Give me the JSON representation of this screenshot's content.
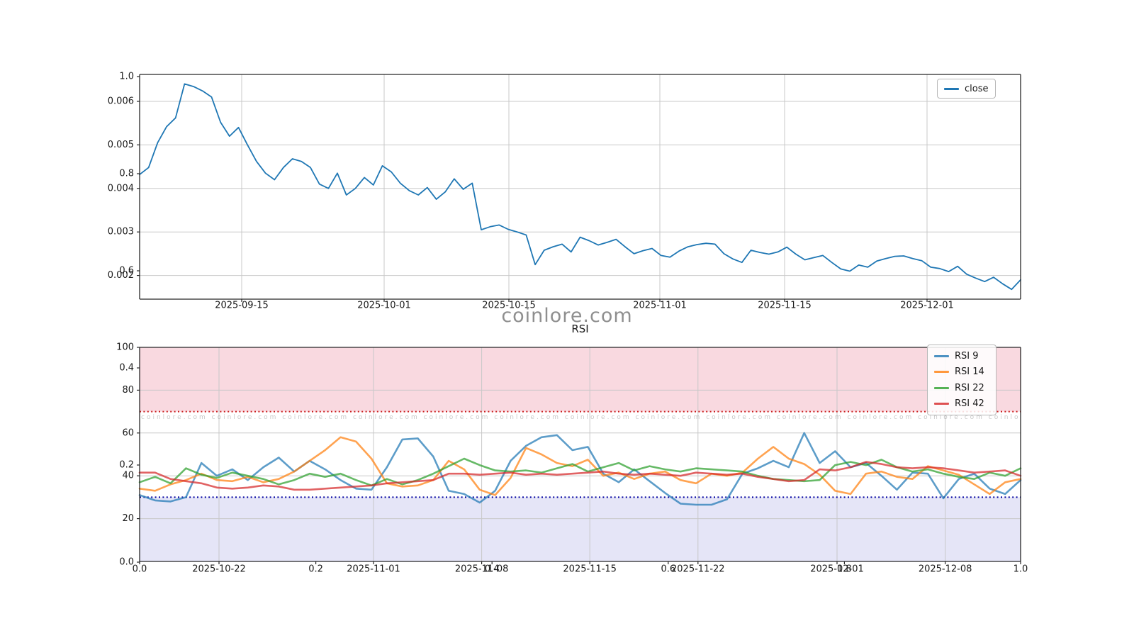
{
  "watermark": {
    "text": "coinlore.com",
    "tiled_text": "coinlore.com coinlore.com coinlore.com coinlore.com coinlore.com coinlore.com coinlore.com coinlore.com coinlore.com coinlore.com coinlore.com coinlore.com coinlore.com coinlore.com"
  },
  "figure_axis": {
    "x_tick_labels": [
      "0.0",
      "0.2",
      "0.4",
      "0.6",
      "0.8",
      "1.0"
    ],
    "y_tick_labels": [
      "1.0",
      "0.8",
      "0.6",
      "0.4",
      "0.2",
      "0.0"
    ]
  },
  "chart_data": [
    {
      "type": "line",
      "title": "",
      "legend_position": "upper right",
      "grid": true,
      "x_start": "2025-09-04",
      "x_end": "2025-12-11",
      "x_tick_labels": [
        "2025-09-15",
        "2025-10-01",
        "2025-10-15",
        "2025-11-01",
        "2025-11-15",
        "2025-12-01"
      ],
      "y_tick_labels": [
        "0.006",
        "0.005",
        "0.004",
        "0.003",
        "0.002"
      ],
      "y_tick_values": [
        0.006,
        0.005,
        0.004,
        0.003,
        0.002
      ],
      "ylim": [
        0.00143,
        0.00662
      ],
      "series": [
        {
          "name": "close",
          "color": "#1f77b4",
          "values": [
            0.00432,
            0.00448,
            0.00505,
            0.00542,
            0.00562,
            0.0064,
            0.00634,
            0.00624,
            0.0061,
            0.00552,
            0.0052,
            0.0054,
            0.005,
            0.00462,
            0.00435,
            0.0042,
            0.00448,
            0.00468,
            0.00462,
            0.00448,
            0.0041,
            0.004,
            0.00435,
            0.00385,
            0.004,
            0.00425,
            0.00408,
            0.00452,
            0.00438,
            0.00412,
            0.00395,
            0.00385,
            0.00402,
            0.00375,
            0.00392,
            0.00422,
            0.00398,
            0.00412,
            0.00305,
            0.00312,
            0.00316,
            0.00306,
            0.003,
            0.00293,
            0.00225,
            0.00258,
            0.00266,
            0.00272,
            0.00254,
            0.00288,
            0.0028,
            0.0027,
            0.00276,
            0.00283,
            0.00266,
            0.0025,
            0.00257,
            0.00262,
            0.00246,
            0.00242,
            0.00256,
            0.00266,
            0.00271,
            0.00274,
            0.00272,
            0.0025,
            0.00238,
            0.0023,
            0.00258,
            0.00253,
            0.00249,
            0.00254,
            0.00265,
            0.00249,
            0.00236,
            0.00241,
            0.00246,
            0.0023,
            0.00215,
            0.0021,
            0.00224,
            0.00219,
            0.00233,
            0.00239,
            0.00244,
            0.00245,
            0.00239,
            0.00234,
            0.00219,
            0.00216,
            0.00209,
            0.00221,
            0.00203,
            0.00194,
            0.00186,
            0.00196,
            0.00181,
            0.00168,
            0.0019
          ]
        }
      ]
    },
    {
      "type": "line",
      "title": "RSI",
      "legend_position": "upper right",
      "grid": true,
      "x_start": "2025-10-17",
      "x_end": "2025-12-13",
      "x_tick_labels": [
        "2025-10-22",
        "2025-11-01",
        "2025-11-08",
        "2025-11-15",
        "2025-11-22",
        "2025-12-01",
        "2025-12-08"
      ],
      "y_tick_labels": [
        "100",
        "80",
        "60",
        "40",
        "20"
      ],
      "y_tick_values": [
        100,
        80,
        60,
        40,
        20
      ],
      "ylim": [
        0,
        100
      ],
      "overbought_level": 70,
      "oversold_level": 30,
      "threshold_lines": [
        {
          "value": 70,
          "color": "#cc2222",
          "style": "dotted"
        },
        {
          "value": 30,
          "color": "#0000a0",
          "style": "dotted"
        }
      ],
      "bands": [
        {
          "from": 70,
          "to": 100,
          "color": "rgba(220,20,60,0.16)"
        },
        {
          "from": 0,
          "to": 30,
          "color": "rgba(70,70,200,0.14)"
        }
      ],
      "series": [
        {
          "name": "RSI 9",
          "color": "#1f77b4",
          "values": [
            31,
            28.5,
            28,
            30,
            46,
            40,
            43,
            38,
            44,
            48.5,
            42,
            47,
            43,
            38,
            34,
            33.5,
            44,
            57,
            57.5,
            49,
            33,
            31.5,
            27.5,
            33,
            47,
            54,
            58,
            59,
            52,
            53.5,
            41,
            37,
            43,
            37.5,
            32,
            27,
            26.5,
            26.5,
            29,
            41,
            43.5,
            47,
            44,
            60,
            46,
            51.5,
            44,
            46,
            40,
            33.5,
            41.5,
            41,
            29.5,
            38.5,
            41,
            34,
            31.5,
            38
          ]
        },
        {
          "name": "RSI 14",
          "color": "#ff7f0e",
          "values": [
            34,
            33,
            36,
            38,
            41,
            38,
            37.5,
            39.5,
            37,
            38.5,
            42,
            47,
            52,
            58,
            56,
            48,
            36.5,
            35,
            35.5,
            38,
            47,
            43,
            33.5,
            31,
            39,
            53,
            50,
            46,
            44.5,
            47.5,
            40,
            41.5,
            38.5,
            41,
            42,
            38,
            36.5,
            41,
            40,
            41.5,
            48,
            53.5,
            48,
            45.5,
            40.5,
            33,
            31.5,
            41,
            42,
            39.5,
            38.5,
            44.5,
            42.5,
            40.5,
            36,
            31.5,
            37,
            38.5
          ]
        },
        {
          "name": "RSI 22",
          "color": "#2ca02c",
          "values": [
            37,
            39.5,
            36.5,
            43.5,
            40.5,
            39,
            41.5,
            40,
            38.5,
            36,
            38,
            41,
            39.5,
            41,
            38,
            35.5,
            38.5,
            36,
            38,
            41,
            44.5,
            48,
            45,
            42.5,
            42,
            42.5,
            41.5,
            43.5,
            45.5,
            42,
            44,
            46,
            42.5,
            44.5,
            43,
            42,
            43.5,
            43,
            42.5,
            42,
            40,
            38.5,
            38,
            37.5,
            38,
            45,
            46.5,
            45,
            47.5,
            44,
            42,
            43,
            41,
            39.5,
            38.5,
            41.5,
            40,
            43.5
          ]
        },
        {
          "name": "RSI 42",
          "color": "#d62728",
          "values": [
            41.5,
            41.5,
            38.5,
            37.5,
            36.5,
            34.5,
            34,
            34.5,
            35.5,
            35,
            33.5,
            33.5,
            34,
            34.5,
            35,
            35.5,
            36.5,
            37,
            37.5,
            38,
            41,
            41,
            40.5,
            41,
            41.5,
            40.5,
            41,
            40.5,
            41,
            41.5,
            42,
            41,
            40.5,
            41,
            40.5,
            40,
            41.5,
            41,
            40.5,
            41,
            39.5,
            38.5,
            37.5,
            38,
            43,
            42.5,
            44,
            46.5,
            45.5,
            44,
            43.5,
            44,
            43.5,
            42.5,
            41.5,
            42,
            42.5,
            40
          ]
        }
      ]
    }
  ]
}
